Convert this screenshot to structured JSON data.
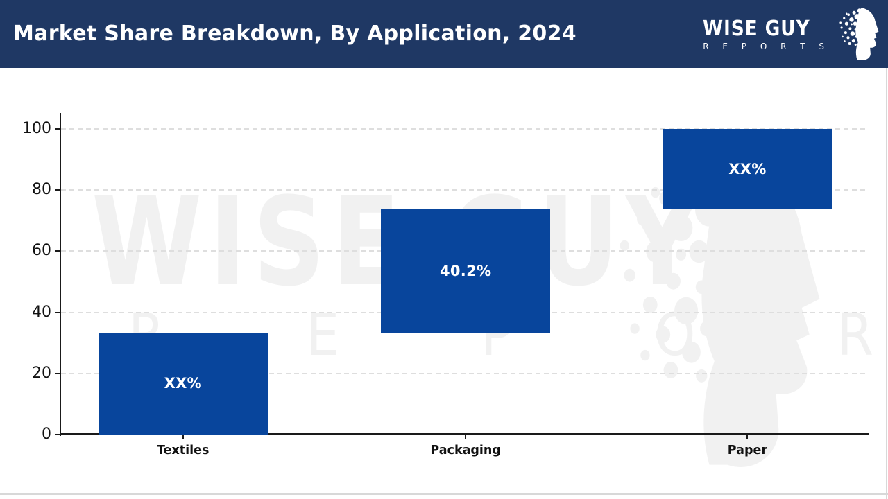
{
  "header": {
    "title": "Market Share Breakdown, By Application, 2024",
    "logo": {
      "line1": "WISE GUY",
      "line2": "R E P O R T S"
    }
  },
  "watermark": {
    "line1": "WISE GUY",
    "line2": "R E P O R T S"
  },
  "chart_data": {
    "type": "bar",
    "subtype": "waterfall",
    "title": "Market Share Breakdown, By Application, 2024",
    "categories": [
      "Textiles",
      "Packaging",
      "Paper"
    ],
    "series": [
      {
        "name": "Market Share (%)",
        "segments": [
          {
            "category": "Textiles",
            "start": 0,
            "end": 33.4,
            "label": "XX%"
          },
          {
            "category": "Packaging",
            "start": 33.4,
            "end": 73.6,
            "label": "40.2%"
          },
          {
            "category": "Paper",
            "start": 73.6,
            "end": 100,
            "label": "XX%"
          }
        ]
      }
    ],
    "xlabel": "",
    "ylabel": "",
    "ylim": [
      0,
      100
    ],
    "yticks": [
      0,
      20,
      40,
      60,
      80,
      100
    ],
    "grid": "horizontal-dashed",
    "legend": "none",
    "bar_color": "#08459c",
    "bar_label_color": "#ffffff",
    "layout": {
      "x_centers_pct": [
        15.1,
        50.1,
        85.0
      ],
      "bar_width_pct": 21
    }
  },
  "colors": {
    "header_bg": "#1f3864",
    "bar": "#08459c",
    "grid": "#dedede",
    "axis": "#1a1a1a",
    "watermark": "#f1f1f1",
    "page_bg": "#ffffff"
  }
}
